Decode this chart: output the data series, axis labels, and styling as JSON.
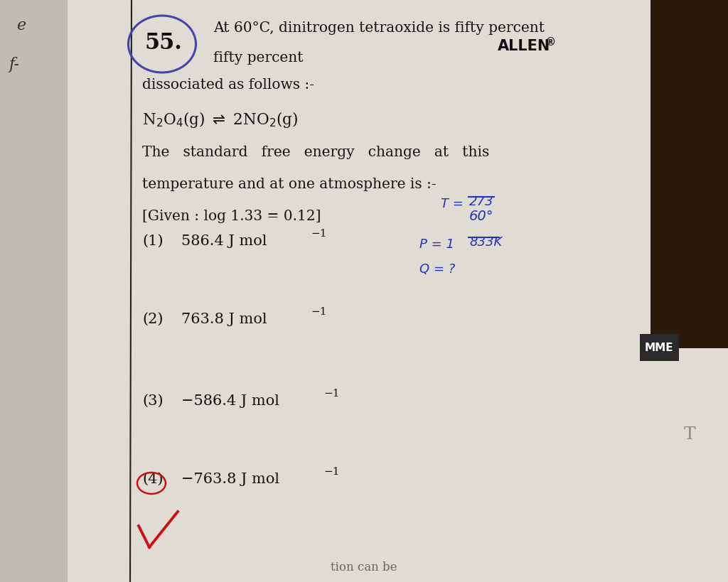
{
  "bg_left_color": "#c8c4bc",
  "bg_main_color": "#d4d0c8",
  "paper_color": "#e0dcd4",
  "dark_right": "#2a1a0a",
  "left_strip_color": "#b0a898",
  "margin_line_color": "#222222",
  "question_number": "55.",
  "circle_color": "#4444aa",
  "line1a": "At 60°C, dinitrogen tetraoxide is fifty percent",
  "line1b": "ALLEN",
  "allen_reg": "®",
  "line2": "dissociated as follows :-",
  "line3a": "N",
  "line3b": "2",
  "line3c": "O",
  "line3d": "4",
  "line3e": "(g) ⇌ 2NO",
  "line3f": "2",
  "line3g": "(g)",
  "line4a": "The   standard   free   energy   change   at   this",
  "line4b": "temperature and at one atmosphere is :-",
  "given_line": "[Given : log 1.33 = 0.12]",
  "hw_T": "T =",
  "hw_273": "273",
  "hw_60": "60°",
  "hw_P": "P = 1",
  "hw_833": "833K",
  "hw_Q": "Q = ?",
  "opt1_num": "(1)",
  "opt1_val": "586.4 J mol",
  "opt2_num": "(2)",
  "opt2_val": "763.8 J mol",
  "opt3_num": "(3)",
  "opt3_val": "−586.4 J mol",
  "opt4_num": "(4)",
  "opt4_val": "−763.8 J mol",
  "superscript": "−1",
  "tick_color": "#cc1111",
  "hw_color": "#2233bb",
  "bottom_text": "tion can be",
  "mme_color": "#ffffff",
  "mme_bg": "#2a2a2a",
  "t_watermark": "T",
  "left_text1": "e",
  "left_text2": "f-"
}
